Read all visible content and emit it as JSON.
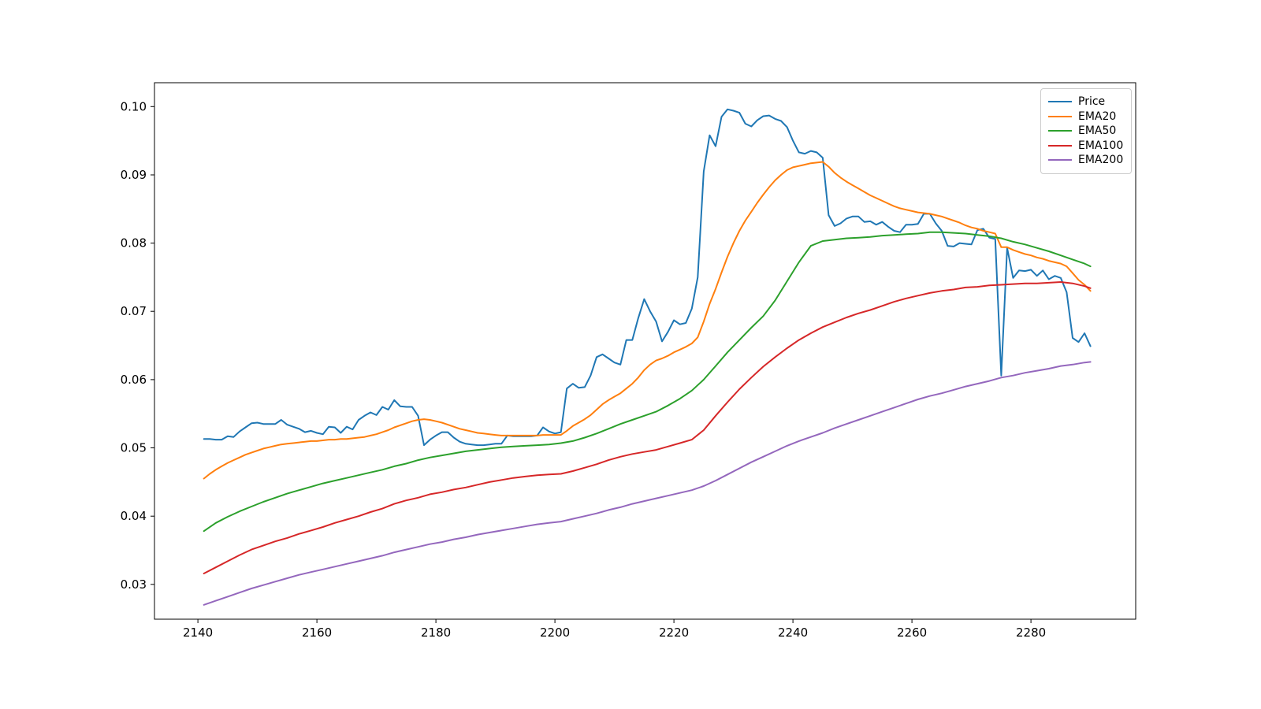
{
  "page": {
    "background": "#ffffff"
  },
  "chart_data": {
    "type": "line",
    "title": "",
    "xlabel": "",
    "ylabel": "",
    "grid": false,
    "xlim": [
      2132.7,
      2297.6
    ],
    "ylim": [
      0.0249,
      0.1035
    ],
    "x_ticks": [
      2140,
      2160,
      2180,
      2200,
      2220,
      2240,
      2260,
      2280
    ],
    "x_tick_labels": [
      "2140",
      "2160",
      "2180",
      "2200",
      "2220",
      "2240",
      "2260",
      "2280"
    ],
    "y_ticks": [
      0.03,
      0.04,
      0.05,
      0.06,
      0.07,
      0.08,
      0.09,
      0.1
    ],
    "y_tick_labels": [
      "0.03",
      "0.04",
      "0.05",
      "0.06",
      "0.07",
      "0.08",
      "0.09",
      "0.10"
    ],
    "legend": {
      "position": "upper right"
    },
    "series": [
      {
        "name": "Price",
        "color": "#1f77b4",
        "x": [
          2141,
          2142,
          2143,
          2144,
          2145,
          2146,
          2147,
          2148,
          2149,
          2150,
          2151,
          2152,
          2153,
          2154,
          2155,
          2156,
          2157,
          2158,
          2159,
          2160,
          2161,
          2162,
          2163,
          2164,
          2165,
          2166,
          2167,
          2168,
          2169,
          2170,
          2171,
          2172,
          2173,
          2174,
          2175,
          2176,
          2177,
          2178,
          2179,
          2180,
          2181,
          2182,
          2183,
          2184,
          2185,
          2186,
          2187,
          2188,
          2189,
          2190,
          2191,
          2192,
          2193,
          2194,
          2195,
          2196,
          2197,
          2198,
          2199,
          2200,
          2201,
          2202,
          2203,
          2204,
          2205,
          2206,
          2207,
          2208,
          2209,
          2210,
          2211,
          2212,
          2213,
          2214,
          2215,
          2216,
          2217,
          2218,
          2219,
          2220,
          2221,
          2222,
          2223,
          2224,
          2225,
          2226,
          2227,
          2228,
          2229,
          2230,
          2231,
          2232,
          2233,
          2234,
          2235,
          2236,
          2237,
          2238,
          2239,
          2240,
          2241,
          2242,
          2243,
          2244,
          2245,
          2246,
          2247,
          2248,
          2249,
          2250,
          2251,
          2252,
          2253,
          2254,
          2255,
          2256,
          2257,
          2258,
          2259,
          2260,
          2261,
          2262,
          2263,
          2264,
          2265,
          2266,
          2267,
          2268,
          2269,
          2270,
          2271,
          2272,
          2273,
          2274,
          2275,
          2276,
          2277,
          2278,
          2279,
          2280,
          2281,
          2282,
          2283,
          2284,
          2285,
          2286,
          2287,
          2288,
          2289,
          2290
        ],
        "y": [
          0.0513,
          0.0513,
          0.0512,
          0.0512,
          0.0517,
          0.0516,
          0.0524,
          0.053,
          0.0536,
          0.0537,
          0.0535,
          0.0535,
          0.0535,
          0.0541,
          0.0534,
          0.0531,
          0.0528,
          0.0523,
          0.0525,
          0.0522,
          0.052,
          0.0531,
          0.053,
          0.0522,
          0.0531,
          0.0527,
          0.0541,
          0.0547,
          0.0552,
          0.0548,
          0.056,
          0.0556,
          0.057,
          0.0561,
          0.056,
          0.056,
          0.0547,
          0.0504,
          0.0512,
          0.0518,
          0.0523,
          0.0523,
          0.0515,
          0.0509,
          0.0506,
          0.0505,
          0.0504,
          0.0504,
          0.0505,
          0.0506,
          0.0506,
          0.0518,
          0.0517,
          0.0517,
          0.0517,
          0.0517,
          0.0518,
          0.053,
          0.0524,
          0.0521,
          0.0523,
          0.0587,
          0.0594,
          0.0588,
          0.0589,
          0.0606,
          0.0633,
          0.0637,
          0.0631,
          0.0625,
          0.0622,
          0.0658,
          0.0658,
          0.069,
          0.0718,
          0.07,
          0.0685,
          0.0656,
          0.067,
          0.0687,
          0.0681,
          0.0683,
          0.0704,
          0.075,
          0.0905,
          0.0958,
          0.0942,
          0.0985,
          0.0996,
          0.0994,
          0.0991,
          0.0975,
          0.0971,
          0.098,
          0.0986,
          0.0987,
          0.0982,
          0.0979,
          0.097,
          0.095,
          0.0933,
          0.0931,
          0.0935,
          0.0933,
          0.0925,
          0.0841,
          0.0825,
          0.0829,
          0.0836,
          0.0839,
          0.0839,
          0.0831,
          0.0832,
          0.0827,
          0.0831,
          0.0824,
          0.0818,
          0.0816,
          0.0827,
          0.0827,
          0.0828,
          0.0843,
          0.0843,
          0.0829,
          0.0818,
          0.0796,
          0.0795,
          0.08,
          0.0799,
          0.0798,
          0.0819,
          0.0821,
          0.0808,
          0.0806,
          0.0606,
          0.0793,
          0.0749,
          0.076,
          0.0759,
          0.0761,
          0.0752,
          0.076,
          0.0747,
          0.0752,
          0.0749,
          0.0728,
          0.0661,
          0.0655,
          0.0668,
          0.0649
        ]
      },
      {
        "name": "EMA20",
        "color": "#ff7f0e",
        "x": [
          2141,
          2142,
          2143,
          2144,
          2145,
          2146,
          2147,
          2148,
          2149,
          2150,
          2151,
          2152,
          2153,
          2154,
          2155,
          2156,
          2157,
          2158,
          2159,
          2160,
          2161,
          2162,
          2163,
          2164,
          2165,
          2166,
          2167,
          2168,
          2169,
          2170,
          2171,
          2172,
          2173,
          2174,
          2175,
          2176,
          2177,
          2178,
          2179,
          2180,
          2181,
          2182,
          2183,
          2184,
          2185,
          2186,
          2187,
          2188,
          2189,
          2190,
          2191,
          2192,
          2193,
          2194,
          2195,
          2196,
          2197,
          2198,
          2199,
          2200,
          2201,
          2202,
          2203,
          2204,
          2205,
          2206,
          2207,
          2208,
          2209,
          2210,
          2211,
          2212,
          2213,
          2214,
          2215,
          2216,
          2217,
          2218,
          2219,
          2220,
          2221,
          2222,
          2223,
          2224,
          2225,
          2226,
          2227,
          2228,
          2229,
          2230,
          2231,
          2232,
          2233,
          2234,
          2235,
          2236,
          2237,
          2238,
          2239,
          2240,
          2241,
          2242,
          2243,
          2244,
          2245,
          2246,
          2247,
          2248,
          2249,
          2250,
          2251,
          2252,
          2253,
          2254,
          2255,
          2256,
          2257,
          2258,
          2259,
          2260,
          2261,
          2262,
          2263,
          2264,
          2265,
          2266,
          2267,
          2268,
          2269,
          2270,
          2271,
          2272,
          2273,
          2274,
          2275,
          2276,
          2277,
          2278,
          2279,
          2280,
          2281,
          2282,
          2283,
          2284,
          2285,
          2286,
          2287,
          2288,
          2289,
          2290
        ],
        "y": [
          0.0455,
          0.0462,
          0.0468,
          0.0473,
          0.0478,
          0.0482,
          0.0486,
          0.049,
          0.0493,
          0.0496,
          0.0499,
          0.0501,
          0.0503,
          0.0505,
          0.0506,
          0.0507,
          0.0508,
          0.0509,
          0.051,
          0.051,
          0.0511,
          0.0512,
          0.0512,
          0.0513,
          0.0513,
          0.0514,
          0.0515,
          0.0516,
          0.0518,
          0.052,
          0.0523,
          0.0526,
          0.053,
          0.0533,
          0.0536,
          0.0539,
          0.0541,
          0.0542,
          0.0541,
          0.0539,
          0.0537,
          0.0534,
          0.0531,
          0.0528,
          0.0526,
          0.0524,
          0.0522,
          0.0521,
          0.052,
          0.0519,
          0.0518,
          0.0518,
          0.0518,
          0.0518,
          0.0518,
          0.0518,
          0.0518,
          0.0519,
          0.0519,
          0.0519,
          0.0519,
          0.0525,
          0.0532,
          0.0537,
          0.0542,
          0.0548,
          0.0556,
          0.0564,
          0.057,
          0.0575,
          0.058,
          0.0587,
          0.0594,
          0.0603,
          0.0614,
          0.0622,
          0.0628,
          0.0631,
          0.0635,
          0.064,
          0.0644,
          0.0648,
          0.0653,
          0.0662,
          0.0685,
          0.0711,
          0.0733,
          0.0757,
          0.078,
          0.08,
          0.0818,
          0.0833,
          0.0846,
          0.0859,
          0.0871,
          0.0882,
          0.0892,
          0.09,
          0.0907,
          0.0911,
          0.0913,
          0.0915,
          0.0917,
          0.0918,
          0.0919,
          0.0912,
          0.0903,
          0.0896,
          0.089,
          0.0885,
          0.088,
          0.0875,
          0.087,
          0.0866,
          0.0862,
          0.0858,
          0.0854,
          0.0851,
          0.0849,
          0.0847,
          0.0845,
          0.0844,
          0.0843,
          0.0841,
          0.0839,
          0.0836,
          0.0833,
          0.083,
          0.0826,
          0.0823,
          0.0821,
          0.0818,
          0.0816,
          0.0814,
          0.0794,
          0.0794,
          0.079,
          0.0787,
          0.0784,
          0.0782,
          0.0779,
          0.0777,
          0.0774,
          0.0772,
          0.077,
          0.0766,
          0.0756,
          0.0746,
          0.0739,
          0.073
        ]
      },
      {
        "name": "EMA50",
        "color": "#2ca02c",
        "x": [
          2141,
          2143,
          2145,
          2147,
          2149,
          2151,
          2153,
          2155,
          2157,
          2159,
          2161,
          2163,
          2165,
          2167,
          2169,
          2171,
          2173,
          2175,
          2177,
          2179,
          2181,
          2183,
          2185,
          2187,
          2189,
          2191,
          2193,
          2195,
          2197,
          2199,
          2201,
          2203,
          2205,
          2207,
          2209,
          2211,
          2213,
          2215,
          2217,
          2219,
          2221,
          2223,
          2225,
          2227,
          2229,
          2231,
          2233,
          2235,
          2237,
          2239,
          2241,
          2243,
          2245,
          2247,
          2249,
          2251,
          2253,
          2255,
          2257,
          2259,
          2261,
          2263,
          2265,
          2267,
          2269,
          2271,
          2273,
          2275,
          2277,
          2279,
          2281,
          2283,
          2285,
          2287,
          2289,
          2290
        ],
        "y": [
          0.0378,
          0.039,
          0.0399,
          0.0407,
          0.0414,
          0.0421,
          0.0427,
          0.0433,
          0.0438,
          0.0443,
          0.0448,
          0.0452,
          0.0456,
          0.046,
          0.0464,
          0.0468,
          0.0473,
          0.0477,
          0.0482,
          0.0486,
          0.0489,
          0.0492,
          0.0495,
          0.0497,
          0.0499,
          0.0501,
          0.0502,
          0.0503,
          0.0504,
          0.0505,
          0.0507,
          0.051,
          0.0515,
          0.0521,
          0.0528,
          0.0535,
          0.0541,
          0.0547,
          0.0553,
          0.0562,
          0.0572,
          0.0584,
          0.06,
          0.062,
          0.064,
          0.0658,
          0.0676,
          0.0693,
          0.0716,
          0.0744,
          0.0772,
          0.0796,
          0.0803,
          0.0805,
          0.0807,
          0.0808,
          0.0809,
          0.0811,
          0.0812,
          0.0813,
          0.0814,
          0.0816,
          0.0816,
          0.0815,
          0.0814,
          0.0812,
          0.081,
          0.0807,
          0.0802,
          0.0798,
          0.0793,
          0.0788,
          0.0782,
          0.0776,
          0.077,
          0.0766
        ]
      },
      {
        "name": "EMA100",
        "color": "#d62728",
        "x": [
          2141,
          2143,
          2145,
          2147,
          2149,
          2151,
          2153,
          2155,
          2157,
          2159,
          2161,
          2163,
          2165,
          2167,
          2169,
          2171,
          2173,
          2175,
          2177,
          2179,
          2181,
          2183,
          2185,
          2187,
          2189,
          2191,
          2193,
          2195,
          2197,
          2199,
          2201,
          2203,
          2205,
          2207,
          2209,
          2211,
          2213,
          2215,
          2217,
          2219,
          2221,
          2223,
          2225,
          2227,
          2229,
          2231,
          2233,
          2235,
          2237,
          2239,
          2241,
          2243,
          2245,
          2247,
          2249,
          2251,
          2253,
          2255,
          2257,
          2259,
          2261,
          2263,
          2265,
          2267,
          2269,
          2271,
          2273,
          2275,
          2277,
          2279,
          2281,
          2283,
          2285,
          2287,
          2289,
          2290
        ],
        "y": [
          0.0316,
          0.0325,
          0.0334,
          0.0343,
          0.0351,
          0.0357,
          0.0363,
          0.0368,
          0.0374,
          0.0379,
          0.0384,
          0.039,
          0.0395,
          0.04,
          0.0406,
          0.0411,
          0.0418,
          0.0423,
          0.0427,
          0.0432,
          0.0435,
          0.0439,
          0.0442,
          0.0446,
          0.045,
          0.0453,
          0.0456,
          0.0458,
          0.046,
          0.0461,
          0.0462,
          0.0466,
          0.0471,
          0.0476,
          0.0482,
          0.0487,
          0.0491,
          0.0494,
          0.0497,
          0.0502,
          0.0507,
          0.0512,
          0.0526,
          0.0547,
          0.0567,
          0.0586,
          0.0603,
          0.0619,
          0.0633,
          0.0646,
          0.0658,
          0.0668,
          0.0677,
          0.0684,
          0.0691,
          0.0697,
          0.0702,
          0.0708,
          0.0714,
          0.0719,
          0.0723,
          0.0727,
          0.073,
          0.0732,
          0.0735,
          0.0736,
          0.0738,
          0.0739,
          0.074,
          0.0741,
          0.0741,
          0.0742,
          0.0743,
          0.0741,
          0.0737,
          0.0734
        ]
      },
      {
        "name": "EMA200",
        "color": "#9467bd",
        "x": [
          2141,
          2143,
          2145,
          2147,
          2149,
          2151,
          2153,
          2155,
          2157,
          2159,
          2161,
          2163,
          2165,
          2167,
          2169,
          2171,
          2173,
          2175,
          2177,
          2179,
          2181,
          2183,
          2185,
          2187,
          2189,
          2191,
          2193,
          2195,
          2197,
          2199,
          2201,
          2203,
          2205,
          2207,
          2209,
          2211,
          2213,
          2215,
          2217,
          2219,
          2221,
          2223,
          2225,
          2227,
          2229,
          2231,
          2233,
          2235,
          2237,
          2239,
          2241,
          2243,
          2245,
          2247,
          2249,
          2251,
          2253,
          2255,
          2257,
          2259,
          2261,
          2263,
          2265,
          2267,
          2269,
          2271,
          2273,
          2275,
          2277,
          2279,
          2281,
          2283,
          2285,
          2287,
          2289,
          2290
        ],
        "y": [
          0.027,
          0.0276,
          0.0282,
          0.0288,
          0.0294,
          0.0299,
          0.0304,
          0.0309,
          0.0314,
          0.0318,
          0.0322,
          0.0326,
          0.033,
          0.0334,
          0.0338,
          0.0342,
          0.0347,
          0.0351,
          0.0355,
          0.0359,
          0.0362,
          0.0366,
          0.0369,
          0.0373,
          0.0376,
          0.0379,
          0.0382,
          0.0385,
          0.0388,
          0.039,
          0.0392,
          0.0396,
          0.04,
          0.0404,
          0.0409,
          0.0413,
          0.0418,
          0.0422,
          0.0426,
          0.043,
          0.0434,
          0.0438,
          0.0444,
          0.0452,
          0.0461,
          0.047,
          0.0479,
          0.0487,
          0.0495,
          0.0503,
          0.051,
          0.0516,
          0.0522,
          0.0529,
          0.0535,
          0.0541,
          0.0547,
          0.0553,
          0.0559,
          0.0565,
          0.0571,
          0.0576,
          0.058,
          0.0585,
          0.059,
          0.0594,
          0.0598,
          0.0603,
          0.0606,
          0.061,
          0.0613,
          0.0616,
          0.062,
          0.0622,
          0.0625,
          0.0626
        ]
      }
    ]
  }
}
